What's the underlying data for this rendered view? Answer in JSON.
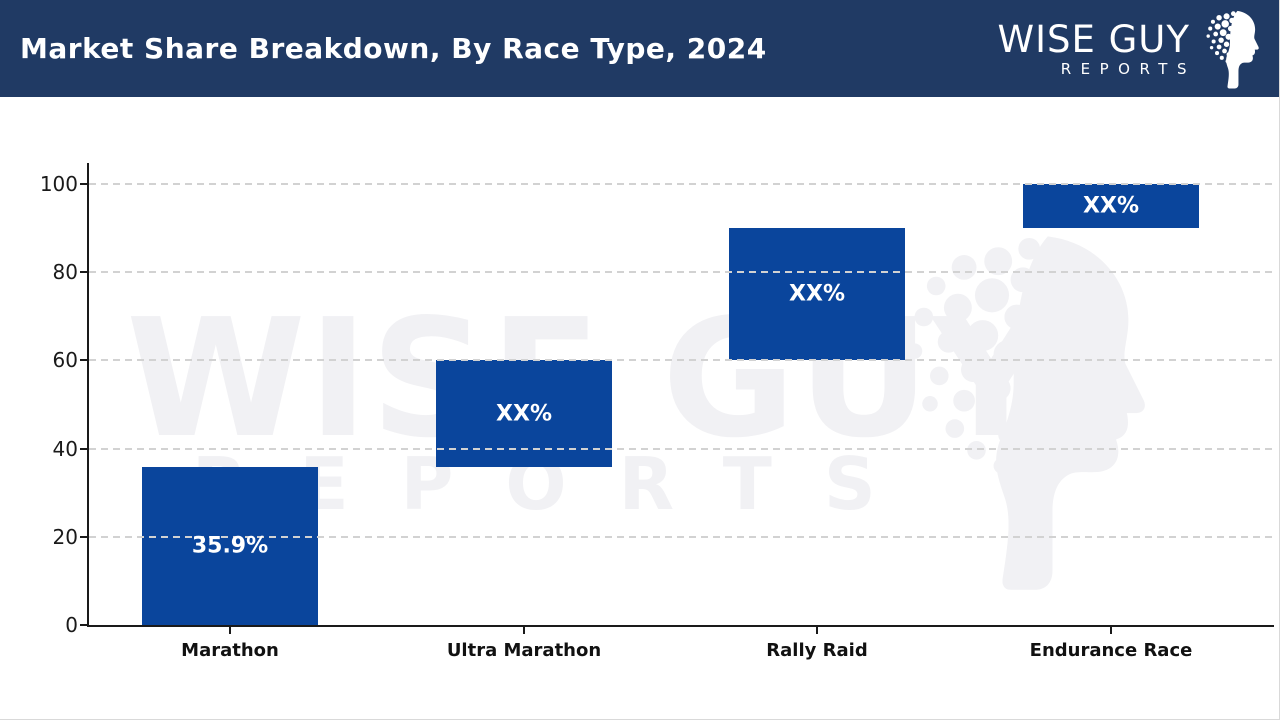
{
  "header": {
    "title": "Market Share Breakdown, By Race Type, 2024",
    "logo": {
      "line1": "WISE GUY",
      "line2": "REPORTS"
    }
  },
  "watermark": {
    "line1": "WISE GUY",
    "line2": "REPORTS"
  },
  "colors": {
    "header_bg": "#203a64",
    "bar": "#0a459c",
    "bar_label": "#ffffff",
    "gridline": "#d2d2d2",
    "axis": "#1a1a1a",
    "watermark": "#f1f1f4",
    "title_text": "#ffffff"
  },
  "chart_data": {
    "type": "bar",
    "variant": "floating-waterfall",
    "title": "Market Share Breakdown, By Race Type, 2024",
    "categories": [
      "Marathon",
      "Ultra Marathon",
      "Rally Raid",
      "Endurance Race"
    ],
    "segments": [
      {
        "category": "Marathon",
        "start": 0,
        "end": 35.9,
        "label": "35.9%"
      },
      {
        "category": "Ultra Marathon",
        "start": 35.9,
        "end": 60,
        "label": "XX%"
      },
      {
        "category": "Rally Raid",
        "start": 60,
        "end": 90,
        "label": "XX%"
      },
      {
        "category": "Endurance Race",
        "start": 90,
        "end": 100,
        "label": "XX%"
      }
    ],
    "xlabel": "",
    "ylabel": "",
    "ylim": [
      0,
      100
    ],
    "yticks": [
      0,
      20,
      40,
      60,
      80,
      100
    ],
    "grid": "horizontal-dashed",
    "legend": "none"
  }
}
